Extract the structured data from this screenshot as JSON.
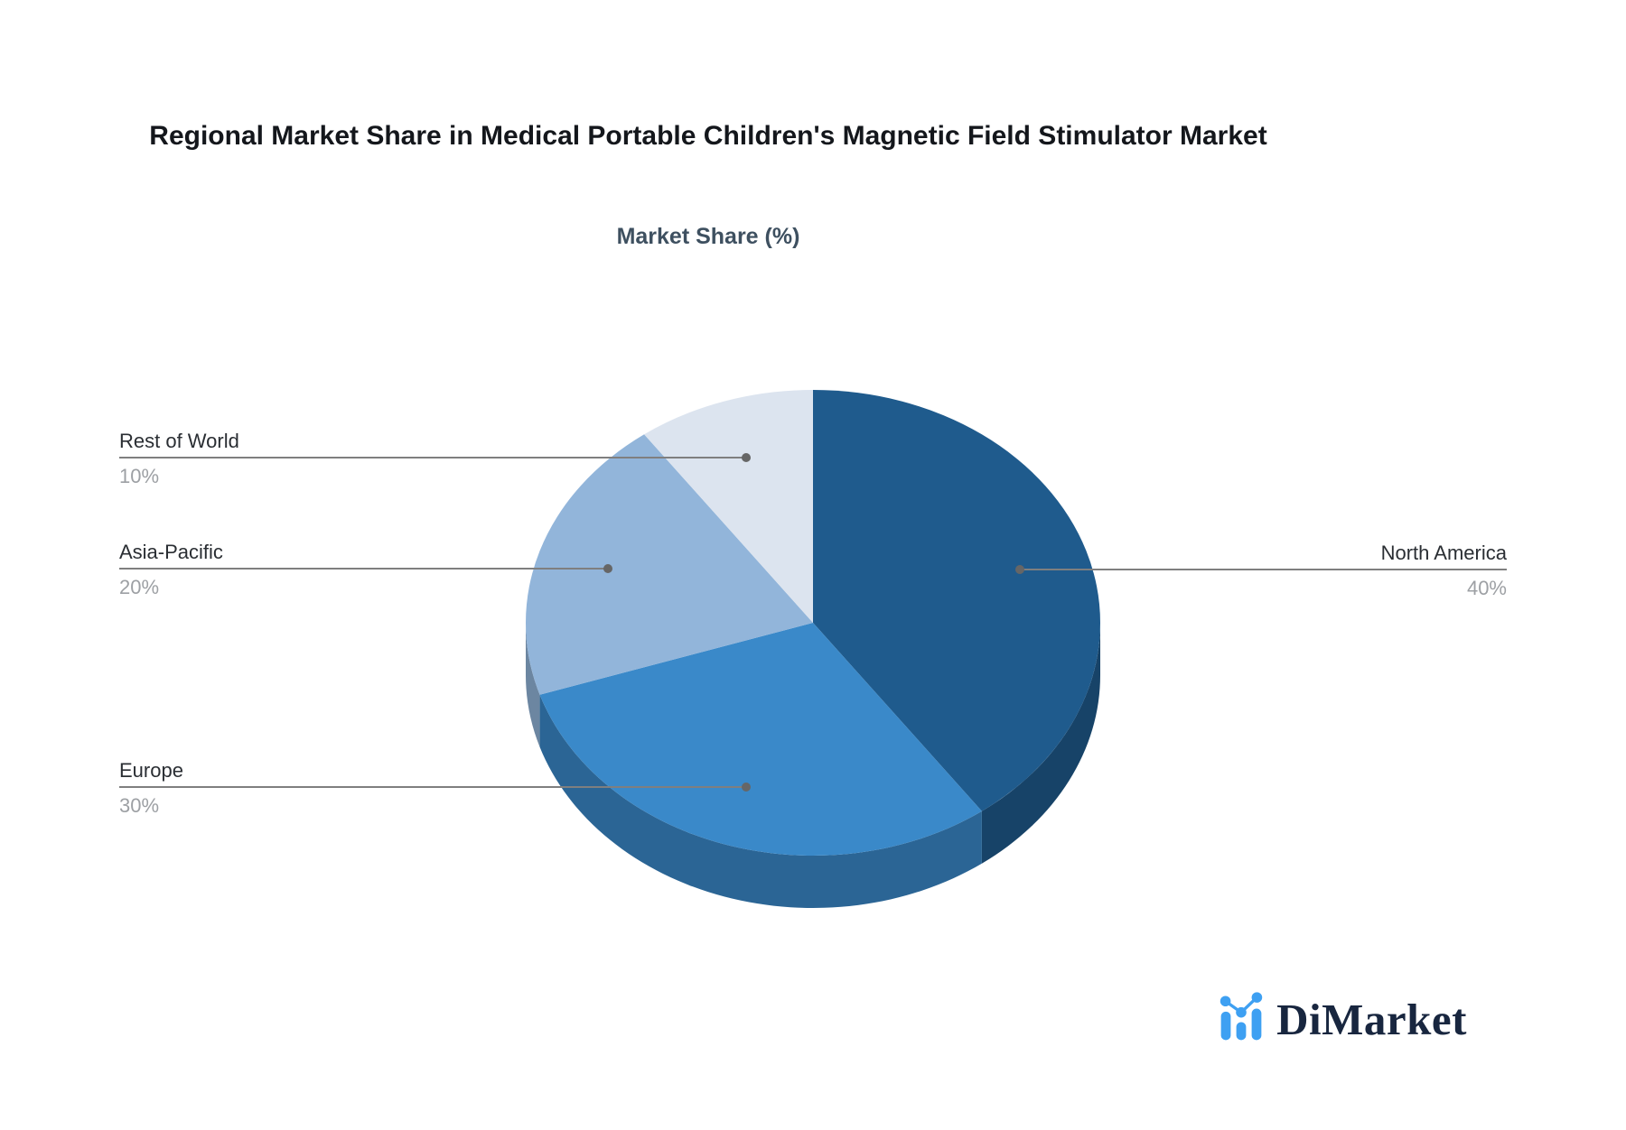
{
  "title": "Regional Market Share in Medical Portable Children's Magnetic Field Stimulator Market",
  "subtitle": "Market Share (%)",
  "chart_data": {
    "type": "pie",
    "style": "3d",
    "title": "Regional Market Share in Medical Portable Children's Magnetic Field Stimulator Market",
    "subtitle": "Market Share (%)",
    "unit": "%",
    "start_angle_deg": 0,
    "direction": "clockwise",
    "legend_position": "callout-labels",
    "slices": [
      {
        "label": "North America",
        "value": 40,
        "color": "#1F5B8D"
      },
      {
        "label": "Europe",
        "value": 30,
        "color": "#3A89C9"
      },
      {
        "label": "Asia-Pacific",
        "value": 20,
        "color": "#92B5DA"
      },
      {
        "label": "Rest of World",
        "value": 10,
        "color": "#DCE4EF"
      }
    ]
  },
  "callouts": [
    {
      "label": "Rest of World",
      "value": "10%"
    },
    {
      "label": "Asia-Pacific",
      "value": "20%"
    },
    {
      "label": "Europe",
      "value": "30%"
    },
    {
      "label": "North America",
      "value": "40%"
    }
  ],
  "logo": {
    "text": "DiMarket",
    "icon": "bar-chart-icon",
    "accent_color": "#3EA0F2",
    "text_color": "#18263f"
  },
  "colors": {
    "connector_line": "#7f7f7f",
    "connector_dot": "#666666",
    "label_text": "#2a2e33",
    "value_text": "#9da0a4"
  }
}
